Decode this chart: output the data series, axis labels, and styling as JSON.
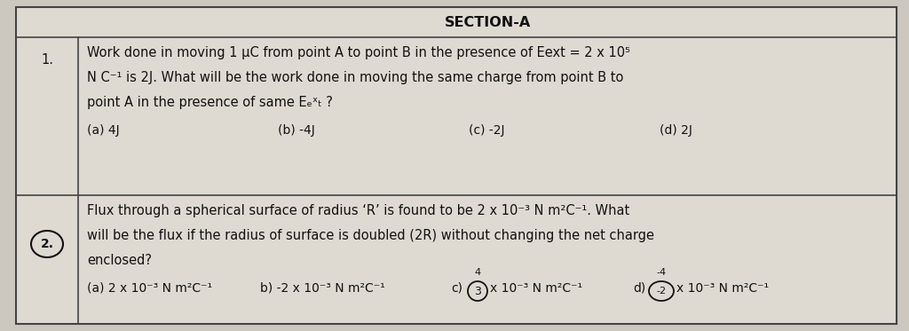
{
  "bg_color": "#ccc8c0",
  "page_color": "#dedad2",
  "border_color": "#444444",
  "text_color": "#111111",
  "title": "SECTION-A",
  "title_fontsize": 11.5,
  "q1_num": "1.",
  "q1_line1": "Work done in moving 1 μC from point A to point B in the presence of Eext = 2 x 10⁵",
  "q1_line2": "N C⁻¹ is 2J. What will be the work done in moving the same charge from point B to",
  "q1_line3": "point A in the presence of same Eₑˣₜ ?",
  "q1_opt_a": "(a) 4J",
  "q1_opt_b": "(b) -4J",
  "q1_opt_c": "(c) -2J",
  "q1_opt_d": "(d) 2J",
  "q2_num": "2.",
  "q2_line1": "Flux through a spherical surface of radius ‘R’ is found to be 2 x 10⁻³ N m²C⁻¹. What",
  "q2_line2": "will be the flux if the radius of surface is doubled (2R) without changing the net charge",
  "q2_line3": "enclosed?",
  "q2_opt_a": "(a) 2 x 10⁻³ N m²C⁻¹",
  "q2_opt_b": "b) -2 x 10⁻³ N m²C⁻¹",
  "q2_opt_c_pre": "c)",
  "q2_opt_c_num": "3",
  "q2_opt_c_sup": "4",
  "q2_opt_c_post": "x 10⁻³ N m²C⁻¹",
  "q2_opt_d_pre": "d)",
  "q2_opt_d_num": "-2",
  "q2_opt_d_sup": "-4",
  "q2_opt_d_post": "x 10⁻³ N m²C⁻¹",
  "main_fs": 10.5,
  "opt_fs": 10.0
}
